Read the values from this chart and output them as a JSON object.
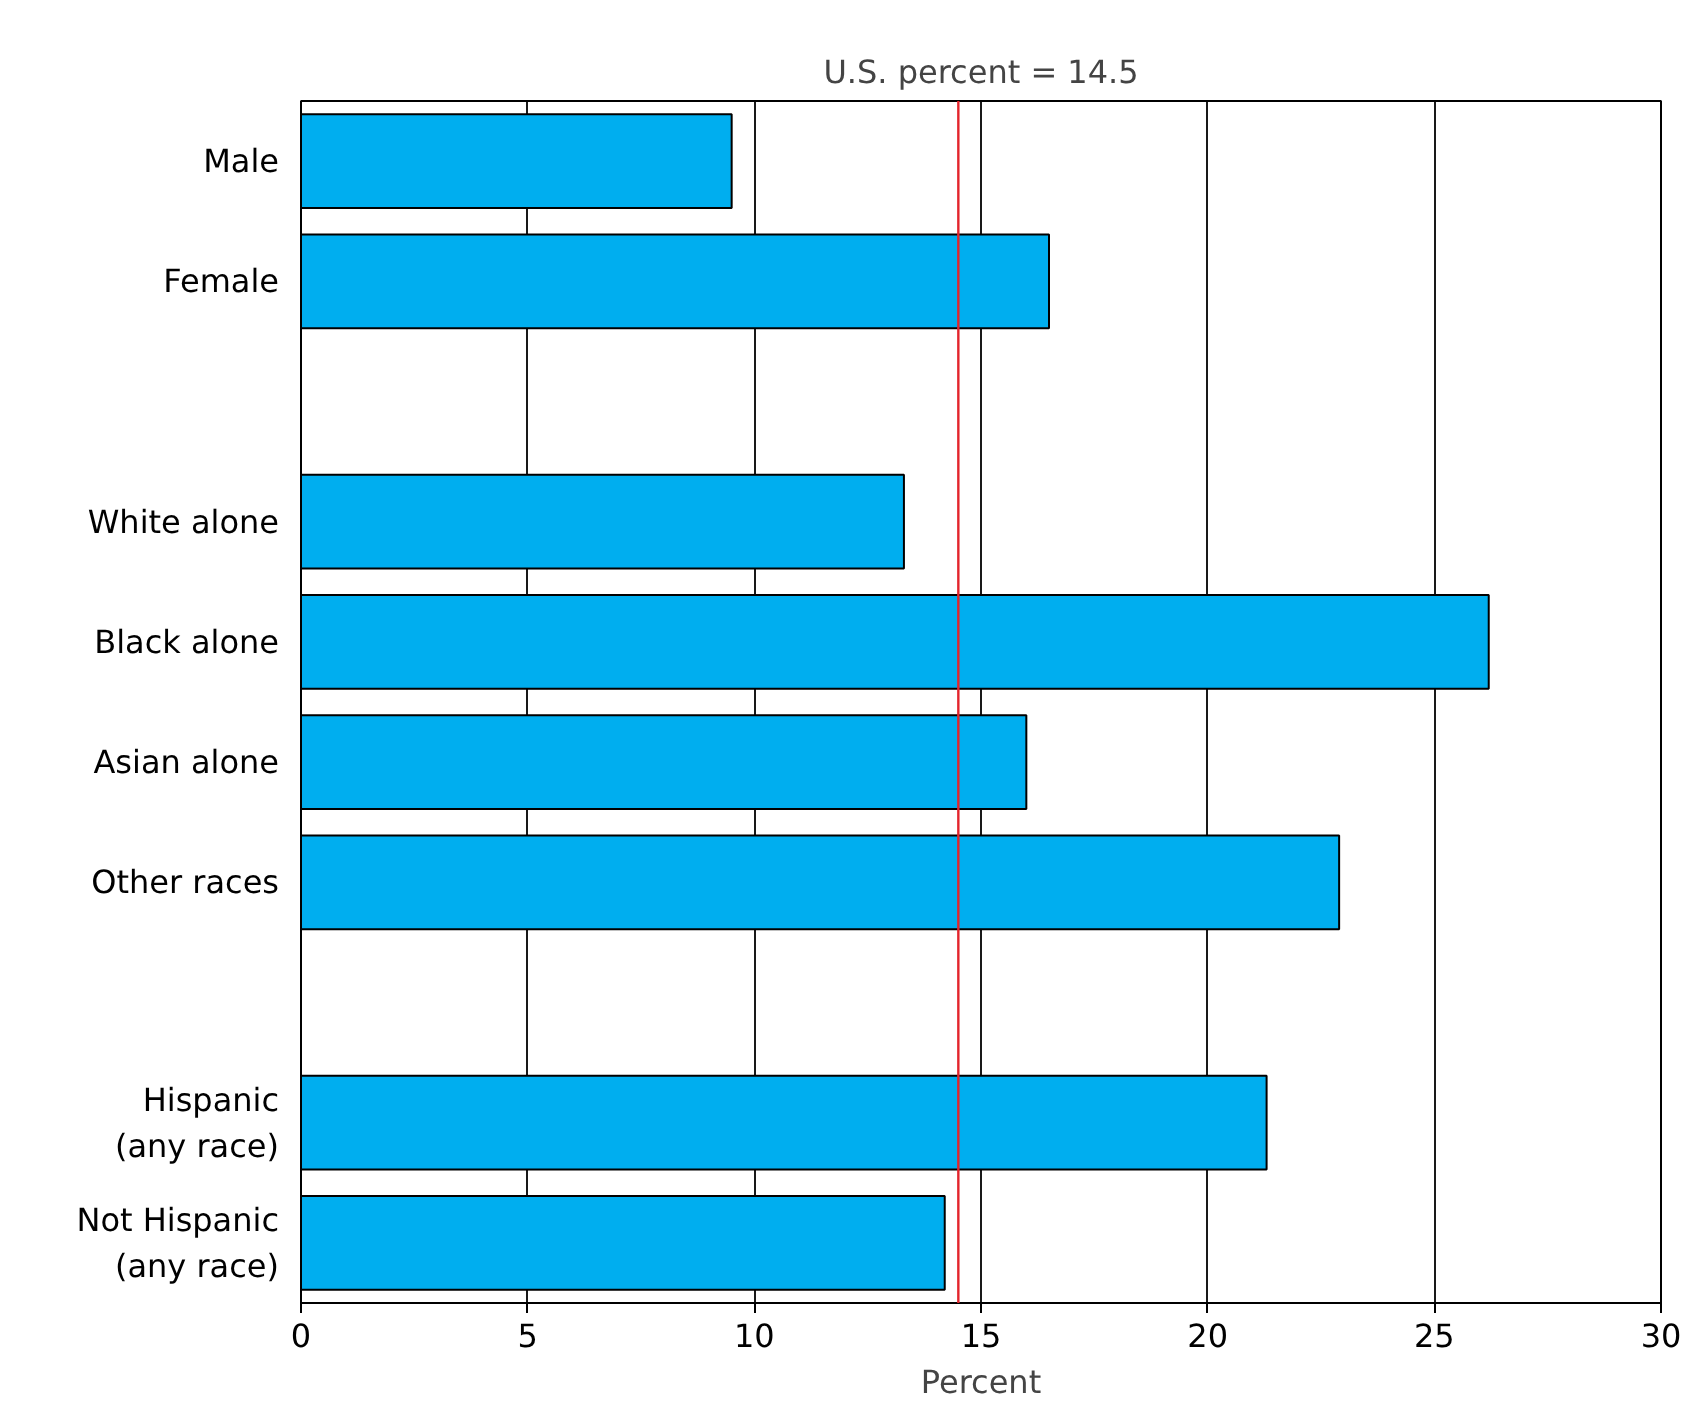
{
  "chart_data": {
    "type": "bar",
    "orientation": "horizontal",
    "xlabel": "Percent",
    "categories": [
      "Male",
      "Female",
      null,
      "White alone",
      "Black alone",
      "Asian alone",
      "Other races",
      null,
      "Hispanic\n(any race)",
      "Not Hispanic\n(any race)"
    ],
    "values": [
      9.5,
      16.5,
      null,
      13.3,
      26.2,
      16.0,
      22.9,
      null,
      21.3,
      14.2
    ],
    "color": "#00aeef",
    "xlim": [
      0,
      30
    ],
    "xticks": [
      0,
      5,
      10,
      15,
      20,
      25,
      30
    ],
    "grid": "x",
    "ref_lines": [
      {
        "axis": "x",
        "value": 14.5,
        "label": "U.S. percent = 14.5",
        "color": "#e3242b"
      }
    ]
  }
}
